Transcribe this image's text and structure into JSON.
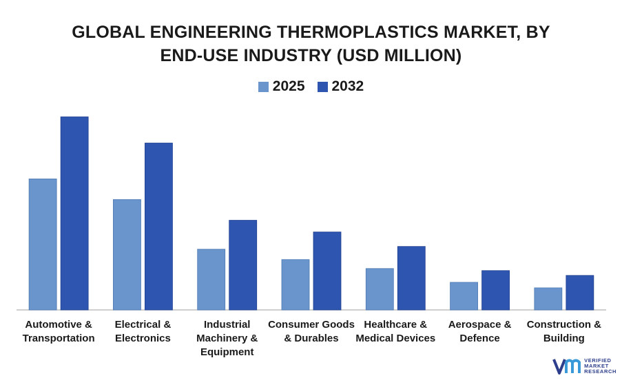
{
  "chart_data": {
    "type": "bar",
    "title_line1": "GLOBAL ENGINEERING THERMOPLASTICS MARKET, BY",
    "title_line2": "END-USE INDUSTRY (USD MILLION)",
    "categories": [
      [
        "Automotive &",
        "Transportation"
      ],
      [
        "Electrical &",
        "Electronics"
      ],
      [
        "Industrial",
        "Machinery &",
        "Equipment"
      ],
      [
        "Consumer Goods",
        "& Durables"
      ],
      [
        "Healthcare &",
        "Medical Devices"
      ],
      [
        "Aerospace &",
        "Defence"
      ],
      [
        "Construction &",
        "Building"
      ]
    ],
    "series": [
      {
        "name": "2025",
        "color": "#6a95cc",
        "values": [
          190,
          160,
          88,
          73,
          60,
          40,
          32
        ]
      },
      {
        "name": "2032",
        "color": "#2e55b0",
        "values": [
          280,
          242,
          130,
          113,
          92,
          57,
          50
        ]
      }
    ],
    "ylim": [
      0,
      300
    ],
    "grid": false,
    "legend_position": "top-center"
  },
  "logo": {
    "text_line1": "VERIFIED",
    "text_line2": "MARKET",
    "text_line3": "RESEARCH"
  }
}
